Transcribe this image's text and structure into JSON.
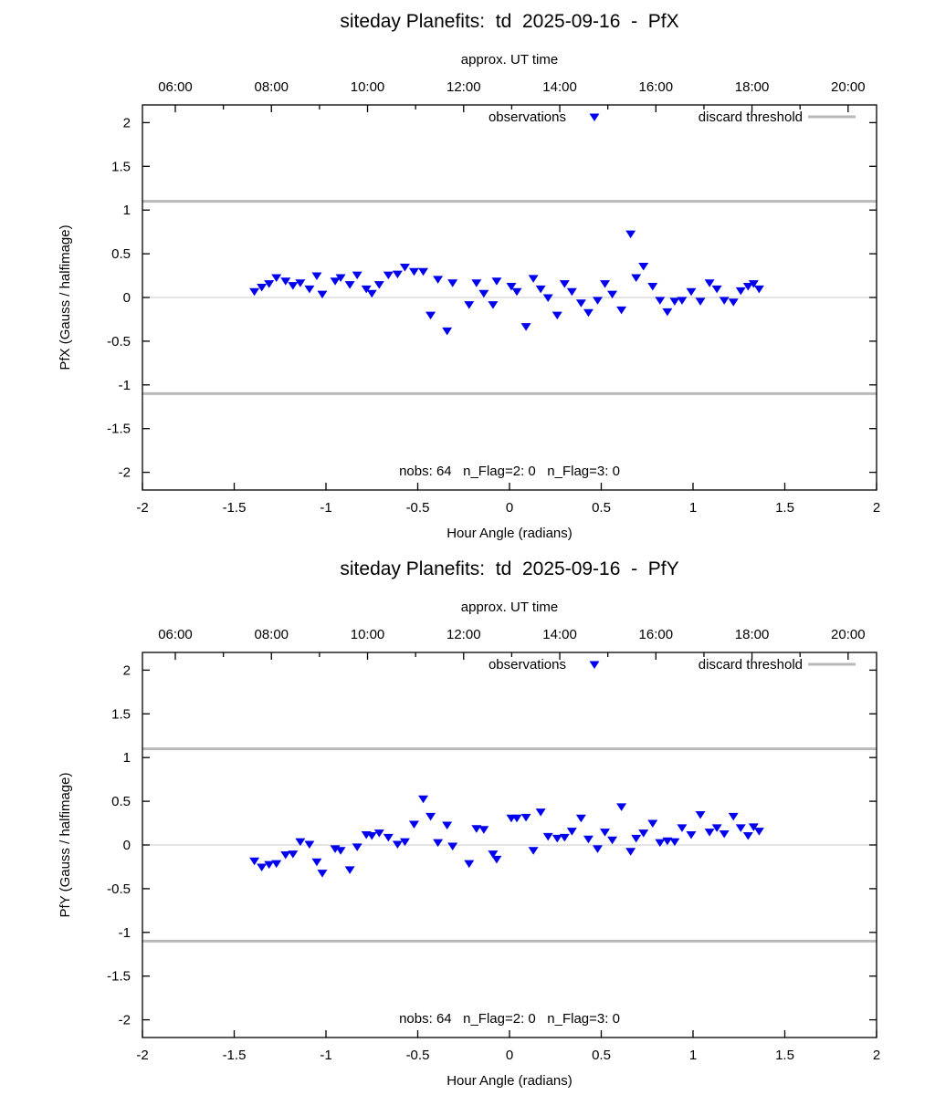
{
  "page": {
    "background": "#ffffff",
    "text_color": "#000000"
  },
  "colors": {
    "marker_blue": "#0000ee",
    "threshold_gray": "#b9b9b9",
    "zero_line_gray": "#c9c9c9",
    "border_black": "#000000"
  },
  "chart_data": [
    {
      "type": "scatter",
      "title": "siteday Planefits:  td  2025-09-16  -  PfX",
      "x2label": "approx. UT time",
      "x2_ticklabels": [
        "06:00",
        "08:00",
        "10:00",
        "12:00",
        "14:00",
        "16:00",
        "18:00",
        "20:00"
      ],
      "xlabel": "Hour Angle (radians)",
      "ylabel": "PfX (Gauss / halfimage)",
      "x_ticklabels": [
        "-2",
        "-1.5",
        "-1",
        "-0.5",
        "0",
        "0.5",
        "1",
        "1.5",
        "2"
      ],
      "y_ticklabels": [
        "-2",
        "-1.5",
        "-1",
        "-0.5",
        "0",
        "0.5",
        "1",
        "1.5",
        "2"
      ],
      "xlim": [
        -2,
        2
      ],
      "ylim": [
        -2.2,
        2.2
      ],
      "zero_line": 0,
      "discard_threshold": [
        1.1,
        -1.1
      ],
      "legend": [
        {
          "label": "observations",
          "symbol": "triangle-down",
          "color": "#0000ee"
        },
        {
          "label": "discard threshold",
          "symbol": "line",
          "color": "#b9b9b9"
        }
      ],
      "annotation": "nobs: 64   n_Flag=2: 0   n_Flag=3: 0",
      "x": [
        -1.39,
        -1.35,
        -1.31,
        -1.27,
        -1.22,
        -1.18,
        -1.14,
        -1.09,
        -1.05,
        -1.02,
        -0.95,
        -0.92,
        -0.87,
        -0.83,
        -0.78,
        -0.75,
        -0.71,
        -0.66,
        -0.61,
        -0.57,
        -0.52,
        -0.47,
        -0.43,
        -0.39,
        -0.34,
        -0.31,
        -0.22,
        -0.18,
        -0.14,
        -0.09,
        -0.07,
        0.01,
        0.04,
        0.09,
        0.13,
        0.17,
        0.21,
        0.26,
        0.3,
        0.34,
        0.39,
        0.43,
        0.48,
        0.52,
        0.56,
        0.61,
        0.66,
        0.69,
        0.73,
        0.78,
        0.82,
        0.86,
        0.9,
        0.94,
        0.99,
        1.04,
        1.09,
        1.13,
        1.17,
        1.22,
        1.26,
        1.3,
        1.33,
        1.36
      ],
      "series": [
        {
          "name": "observations",
          "marker": "triangle-down",
          "color": "#0000ee",
          "values": [
            0.07,
            0.12,
            0.16,
            0.23,
            0.19,
            0.14,
            0.17,
            0.1,
            0.25,
            0.04,
            0.19,
            0.23,
            0.15,
            0.26,
            0.1,
            0.05,
            0.15,
            0.26,
            0.27,
            0.35,
            0.3,
            0.3,
            -0.2,
            0.21,
            -0.38,
            0.17,
            -0.08,
            0.17,
            0.05,
            -0.08,
            0.19,
            0.13,
            0.07,
            -0.33,
            0.22,
            0.1,
            0.0,
            -0.2,
            0.16,
            0.07,
            -0.06,
            -0.17,
            -0.03,
            0.16,
            0.04,
            -0.14,
            0.73,
            0.23,
            0.36,
            0.13,
            -0.03,
            -0.16,
            -0.04,
            -0.03,
            0.07,
            -0.04,
            0.17,
            0.1,
            -0.03,
            -0.05,
            0.08,
            0.13,
            0.16,
            0.1
          ]
        }
      ]
    },
    {
      "type": "scatter",
      "title": "siteday Planefits:  td  2025-09-16  -  PfY",
      "x2label": "approx. UT time",
      "x2_ticklabels": [
        "06:00",
        "08:00",
        "10:00",
        "12:00",
        "14:00",
        "16:00",
        "18:00",
        "20:00"
      ],
      "xlabel": "Hour Angle (radians)",
      "ylabel": "PfY (Gauss / halfimage)",
      "x_ticklabels": [
        "-2",
        "-1.5",
        "-1",
        "-0.5",
        "0",
        "0.5",
        "1",
        "1.5",
        "2"
      ],
      "y_ticklabels": [
        "-2",
        "-1.5",
        "-1",
        "-0.5",
        "0",
        "0.5",
        "1",
        "1.5",
        "2"
      ],
      "xlim": [
        -2,
        2
      ],
      "ylim": [
        -2.2,
        2.2
      ],
      "zero_line": 0,
      "discard_threshold": [
        1.1,
        -1.1
      ],
      "legend": [
        {
          "label": "observations",
          "symbol": "triangle-down",
          "color": "#0000ee"
        },
        {
          "label": "discard threshold",
          "symbol": "line",
          "color": "#b9b9b9"
        }
      ],
      "annotation": "nobs: 64   n_Flag=2: 0   n_Flag=3: 0",
      "x": [
        -1.39,
        -1.35,
        -1.31,
        -1.27,
        -1.22,
        -1.18,
        -1.14,
        -1.09,
        -1.05,
        -1.02,
        -0.95,
        -0.92,
        -0.87,
        -0.83,
        -0.78,
        -0.75,
        -0.71,
        -0.66,
        -0.61,
        -0.57,
        -0.52,
        -0.47,
        -0.43,
        -0.39,
        -0.34,
        -0.31,
        -0.22,
        -0.18,
        -0.14,
        -0.09,
        -0.07,
        0.01,
        0.04,
        0.09,
        0.13,
        0.17,
        0.21,
        0.26,
        0.3,
        0.34,
        0.39,
        0.43,
        0.48,
        0.52,
        0.56,
        0.61,
        0.66,
        0.69,
        0.73,
        0.78,
        0.82,
        0.86,
        0.9,
        0.94,
        0.99,
        1.04,
        1.09,
        1.13,
        1.17,
        1.22,
        1.26,
        1.3,
        1.33,
        1.36
      ],
      "series": [
        {
          "name": "observations",
          "marker": "triangle-down",
          "color": "#0000ee",
          "values": [
            -0.18,
            -0.25,
            -0.22,
            -0.21,
            -0.11,
            -0.1,
            0.04,
            0.01,
            -0.19,
            -0.32,
            -0.04,
            -0.06,
            -0.28,
            -0.02,
            0.12,
            0.11,
            0.14,
            0.09,
            0.01,
            0.04,
            0.24,
            0.53,
            0.33,
            0.03,
            0.23,
            -0.01,
            -0.21,
            0.19,
            0.18,
            -0.1,
            -0.16,
            0.31,
            0.31,
            0.32,
            -0.06,
            0.38,
            0.1,
            0.08,
            0.09,
            0.16,
            0.31,
            0.07,
            -0.04,
            0.15,
            0.06,
            0.44,
            -0.07,
            0.08,
            0.14,
            0.25,
            0.03,
            0.05,
            0.04,
            0.2,
            0.12,
            0.35,
            0.15,
            0.2,
            0.13,
            0.33,
            0.2,
            0.11,
            0.21,
            0.16
          ]
        }
      ]
    }
  ]
}
